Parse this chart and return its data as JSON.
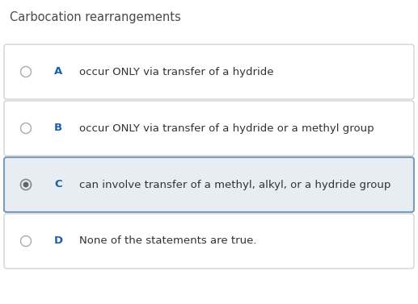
{
  "title": "Carbocation rearrangements",
  "title_fontsize": 10.5,
  "title_color": "#4a4a4a",
  "background_color": "#ffffff",
  "options": [
    {
      "letter": "A",
      "text": "occur ONLY via transfer of a hydride",
      "selected": false,
      "highlighted": false
    },
    {
      "letter": "B",
      "text": "occur ONLY via transfer of a hydride or a methyl group",
      "selected": false,
      "highlighted": false
    },
    {
      "letter": "C",
      "text": "can involve transfer of a methyl, alkyl, or a hydride group",
      "selected": true,
      "highlighted": true
    },
    {
      "letter": "D",
      "text": "None of the statements are true.",
      "selected": false,
      "highlighted": false
    }
  ],
  "letter_color": "#1a5fa8",
  "text_color": "#333333",
  "box_border_color": "#c8c8c8",
  "box_bg_color": "#ffffff",
  "box_highlight_bg": "#e8edf4",
  "box_highlight_border": "#7a9cbd",
  "radio_color": "#aaaaaa",
  "radio_selected_outer": "#888888",
  "radio_selected_inner": "#666666",
  "text_fontsize": 9.5,
  "letter_fontsize": 9.5,
  "figwidth": 5.17,
  "figheight": 3.77,
  "dpi": 100
}
